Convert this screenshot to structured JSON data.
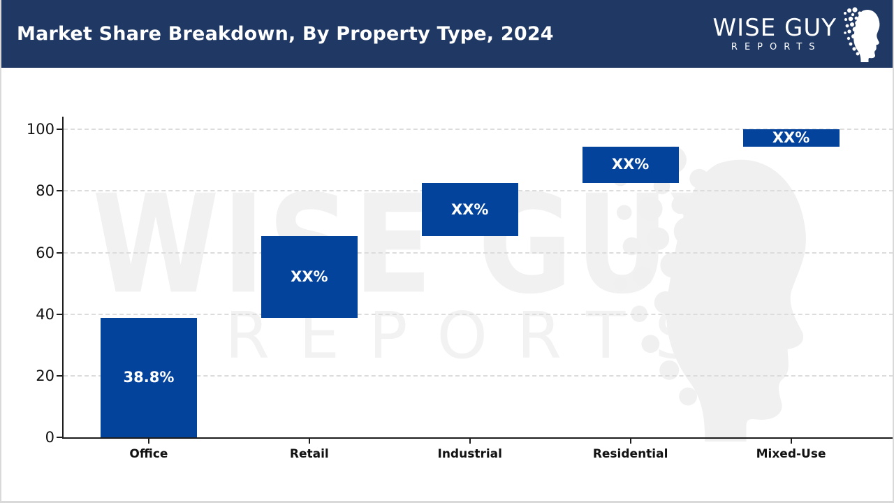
{
  "header": {
    "title": "Market Share Breakdown, By Property Type, 2024",
    "logo": {
      "line1": "WISE GUY",
      "line2": "REPORTS"
    },
    "background_color": "#203864"
  },
  "watermark": {
    "line1": "WISE GUY",
    "line2": "REPORTS"
  },
  "chart_data": {
    "type": "bar",
    "subtype": "waterfall",
    "title": "Market Share Breakdown, By Property Type, 2024",
    "categories": [
      "Office",
      "Retail",
      "Industrial",
      "Residential",
      "Mixed-Use"
    ],
    "segments": [
      {
        "category": "Office",
        "start": 0,
        "end": 38.8,
        "value": 38.8,
        "label": "38.8%"
      },
      {
        "category": "Retail",
        "start": 38.8,
        "end": 65.4,
        "value": 26.6,
        "label": "XX%"
      },
      {
        "category": "Industrial",
        "start": 65.4,
        "end": 82.5,
        "value": 17.1,
        "label": "XX%"
      },
      {
        "category": "Residential",
        "start": 82.5,
        "end": 94.5,
        "value": 12.0,
        "label": "XX%"
      },
      {
        "category": "Mixed-Use",
        "start": 94.5,
        "end": 100,
        "value": 5.5,
        "label": "XX%"
      }
    ],
    "yticks": [
      0,
      20,
      40,
      60,
      80,
      100
    ],
    "ylim": [
      0,
      104.8
    ],
    "xlabel": "",
    "ylabel": "",
    "grid": "horizontal-dashed",
    "legend": "none",
    "bar_color": "#04439C",
    "bar_label_color": "#FFFFFF",
    "grid_color": "#DCDCDC"
  }
}
